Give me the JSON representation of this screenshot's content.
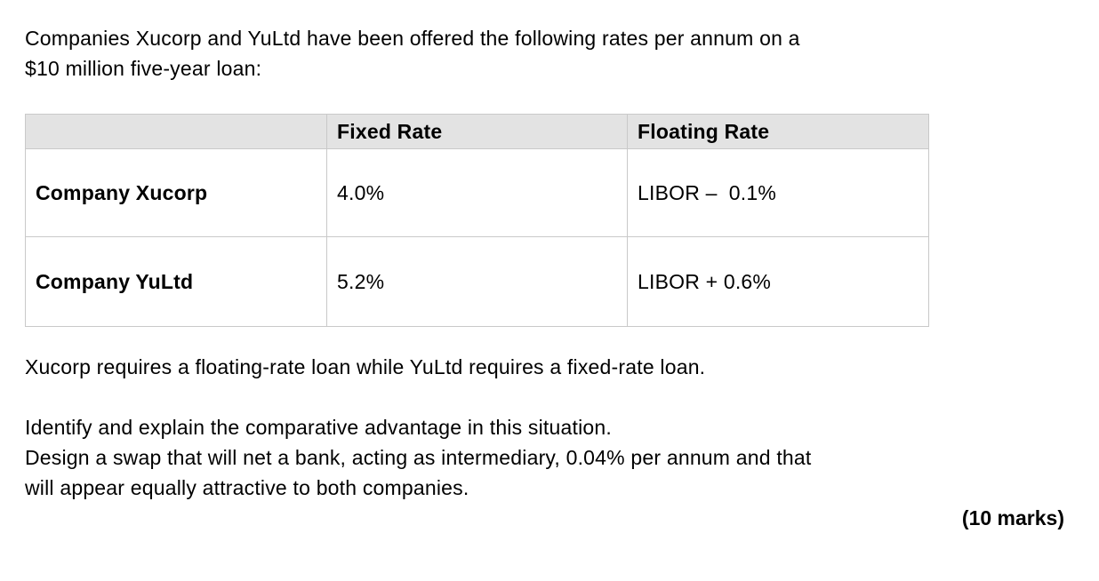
{
  "document": {
    "intro": {
      "lines": [
        "Companies Xucorp and YuLtd have been offered the following rates per annum on a",
        "$10 million five-year loan:"
      ]
    },
    "table": {
      "headers": [
        "",
        "Fixed Rate",
        "Floating Rate"
      ],
      "rows": [
        {
          "cells": [
            "Company Xucorp",
            "4.0%",
            "LIBOR –  0.1%"
          ]
        },
        {
          "cells": [
            "Company YuLtd",
            "5.2%",
            "LIBOR + 0.6%"
          ]
        }
      ]
    },
    "requirement": {
      "lines": [
        "Xucorp requires a floating-rate loan while YuLtd requires a fixed-rate loan."
      ]
    },
    "task": {
      "lines": [
        "Identify and explain the comparative advantage in this situation.",
        "Design a swap that will net a bank, acting as intermediary, 0.04% per annum and that",
        "will appear equally attractive to both companies."
      ]
    },
    "marks": "(10 marks)"
  },
  "colors": {
    "header_bg": "#e3e3e3",
    "table_border": "#c9c9c9",
    "text": "#000000",
    "background": "#ffffff"
  }
}
